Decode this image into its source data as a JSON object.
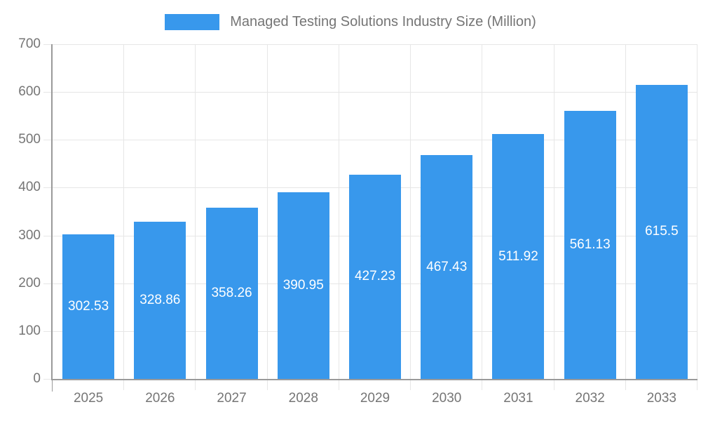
{
  "chart_data": {
    "type": "bar",
    "title": "Managed Testing Solutions Industry Size (Million)",
    "legend_position": "top-center",
    "categories": [
      "2025",
      "2026",
      "2027",
      "2028",
      "2029",
      "2030",
      "2031",
      "2032",
      "2033"
    ],
    "values": [
      302.53,
      328.86,
      358.26,
      390.95,
      427.23,
      467.43,
      511.92,
      561.13,
      615.5
    ],
    "value_labels": [
      "302.53",
      "328.86",
      "358.26",
      "390.95",
      "427.23",
      "467.43",
      "511.92",
      "561.13",
      "615.5"
    ],
    "xlabel": "",
    "ylabel": "",
    "ylim": [
      0,
      700
    ],
    "yticks": [
      0,
      100,
      200,
      300,
      400,
      500,
      600,
      700
    ],
    "grid": true,
    "value_label_position": "inside-middle",
    "colors": {
      "bar": "#3898EC",
      "axis_text": "#757575",
      "value_text": "#ffffff",
      "gridline": "#e6e6e6",
      "axis_line": "#9a9a9a",
      "background": "#ffffff"
    }
  }
}
